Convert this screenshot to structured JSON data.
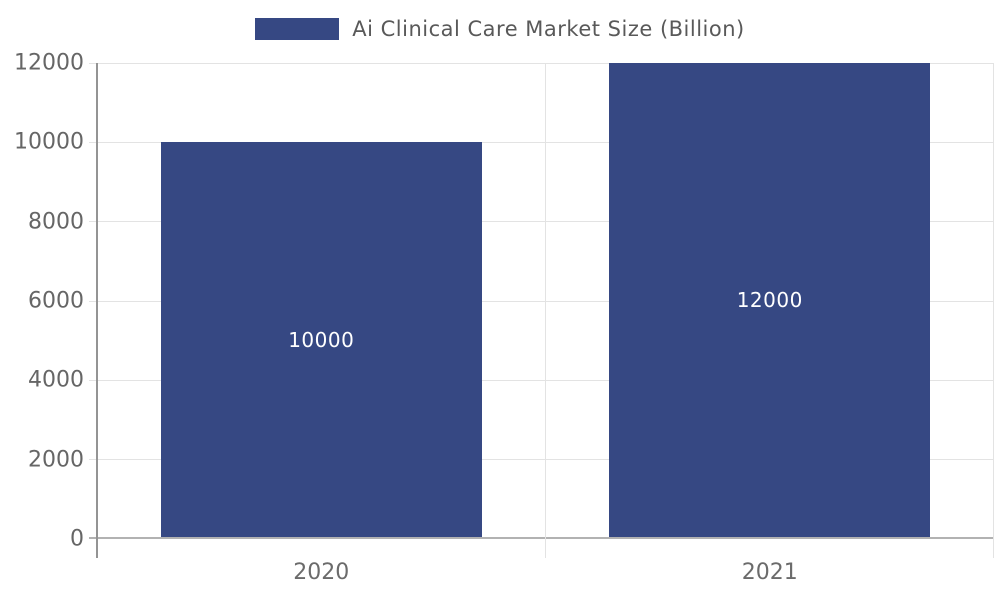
{
  "chart_data": {
    "type": "bar",
    "title": "",
    "legend": {
      "label": "Ai Clinical Care Market Size (Billion)",
      "position": "top-center"
    },
    "categories": [
      "2020",
      "2021"
    ],
    "series": [
      {
        "name": "Ai Clinical Care Market Size (Billion)",
        "values": [
          10000,
          12000
        ],
        "data_labels": [
          "10000",
          "12000"
        ],
        "color": "#364883",
        "label_color": "#ffffff"
      }
    ],
    "xlabel": "",
    "ylabel": "",
    "ylim": [
      0,
      12000
    ],
    "yticks": [
      0,
      2000,
      4000,
      6000,
      8000,
      10000,
      12000
    ],
    "ytick_labels": [
      "0",
      "2000",
      "4000",
      "6000",
      "8000",
      "10000",
      "12000"
    ],
    "grid": true,
    "colors": {
      "background": "#ffffff",
      "grid_color": "#e3e3e3",
      "axis_line_color": "#949494",
      "baseline_color": "#b2b2b2",
      "tick_label_color": "#666666",
      "legend_text_color": "#595959"
    }
  }
}
